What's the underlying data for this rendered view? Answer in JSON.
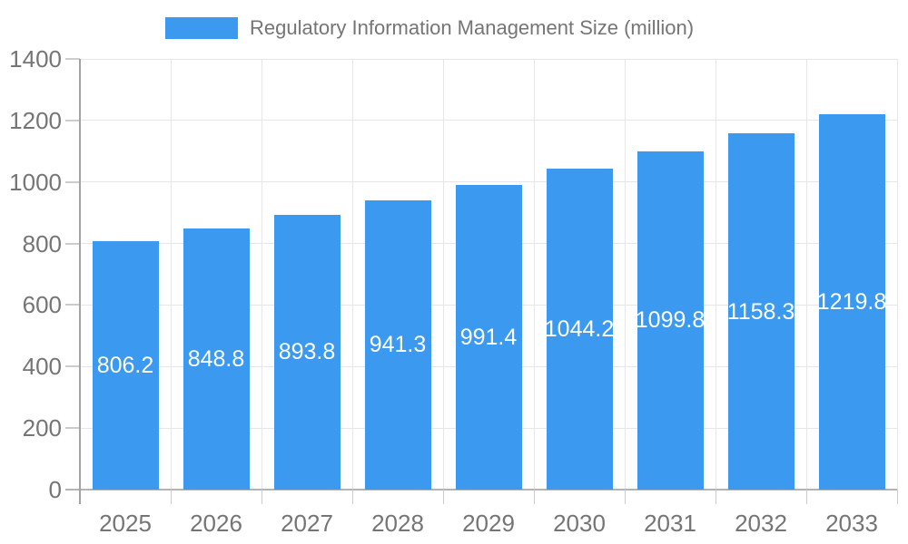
{
  "chart_data": {
    "type": "bar",
    "series_name": "Regulatory Information Management Size (million)",
    "categories": [
      "2025",
      "2026",
      "2027",
      "2028",
      "2029",
      "2030",
      "2031",
      "2032",
      "2033"
    ],
    "values": [
      806.2,
      848.8,
      893.8,
      941.3,
      991.4,
      1044.2,
      1099.8,
      1158.3,
      1219.8
    ],
    "value_labels": [
      "806.2",
      "848.8",
      "893.8",
      "941.3",
      "991.4",
      "1044.2",
      "1099.8",
      "1158.3",
      "1219.8"
    ],
    "ylabel": "",
    "xlabel": "",
    "ylim": [
      0,
      1400
    ],
    "ytick_step": 200,
    "ytick_labels": [
      "0",
      "200",
      "400",
      "600",
      "800",
      "1000",
      "1200",
      "1400"
    ],
    "grid": true,
    "legend_position": "top",
    "colors": {
      "bar": "#3B99F0",
      "bar_value_text": "#ffffff",
      "axis_text": "#757575",
      "legend_text": "#757575",
      "gridline": "#e6e6e6",
      "axis_line": "#a3a3a3",
      "zero_line": "#b3b3b3",
      "tick": "#cccccc",
      "background": "#ffffff"
    }
  }
}
